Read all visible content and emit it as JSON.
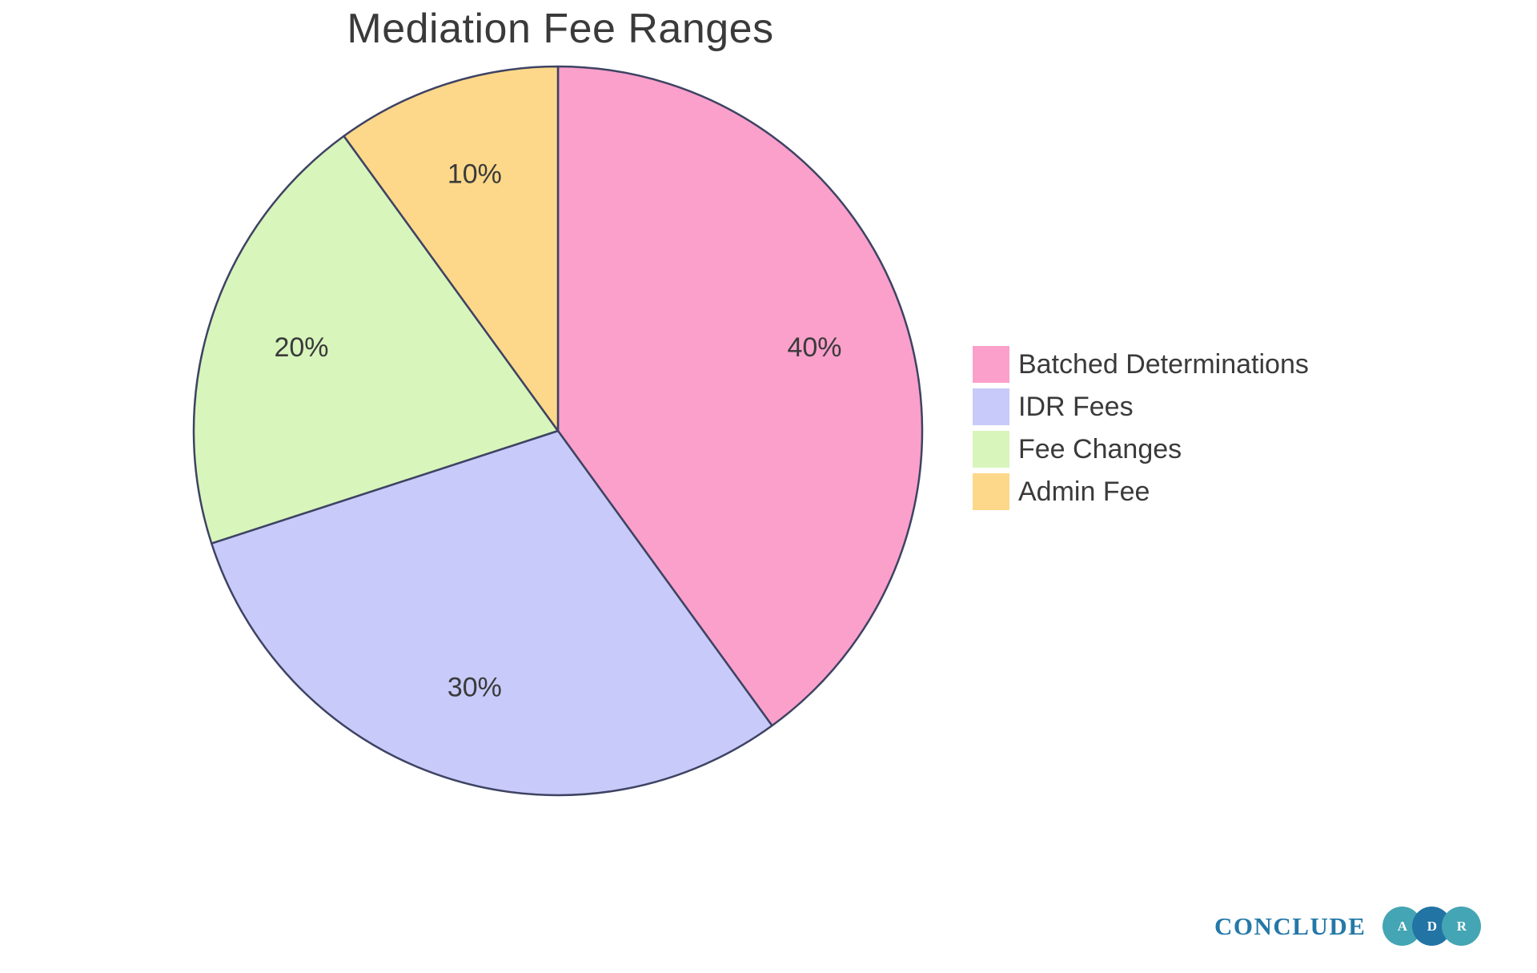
{
  "chart_data": {
    "type": "pie",
    "title": "Mediation Fee Ranges",
    "labels": [
      "Batched Determinations",
      "IDR Fees",
      "Fee Changes",
      "Admin Fee"
    ],
    "values": [
      40,
      30,
      20,
      10
    ],
    "unit": "%",
    "percent_labels": [
      "40%",
      "30%",
      "20%",
      "10%"
    ],
    "colors": [
      "#FAA0CB",
      "#C8CAF9",
      "#D8F5BC",
      "#FDD88A"
    ],
    "border_color": "#3E4363",
    "label_color": "#3A3A3A",
    "start_angle": "12 o'clock, clockwise",
    "legend_position": "right"
  },
  "branding": {
    "wordmark": "CONCLUDE",
    "wordmark_color": "#2478A8",
    "badge_letters": [
      "A",
      "D",
      "R"
    ],
    "badge_colors": [
      "#44A5B4",
      "#2274A5",
      "#44A5B4"
    ]
  }
}
